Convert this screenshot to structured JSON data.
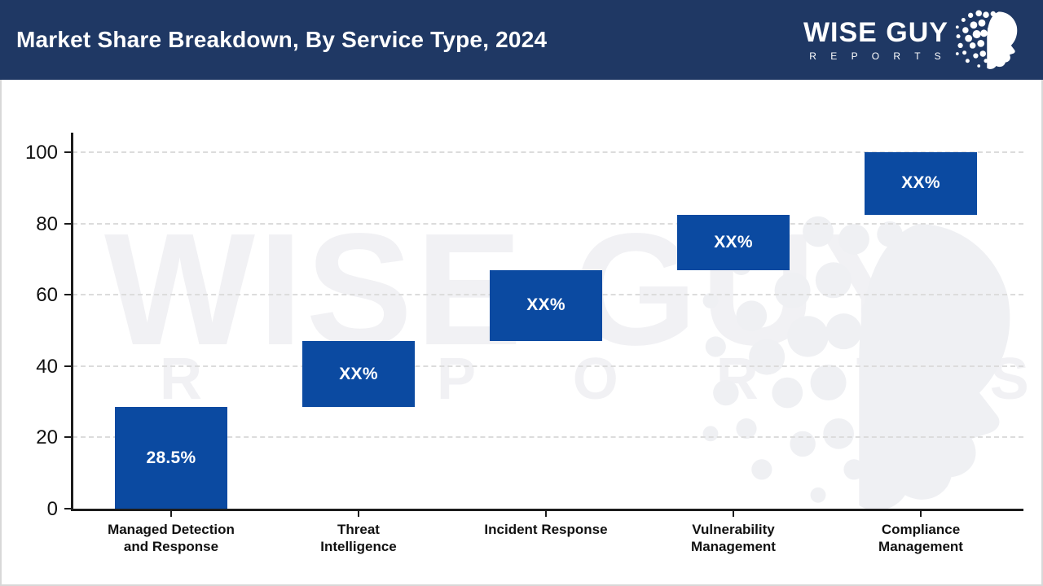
{
  "header": {
    "title": "Market Share Breakdown, By Service Type, 2024",
    "bg_color": "#1f3864",
    "logo": {
      "wordmark": "WISE GUY",
      "subtext": "R E P O R T S"
    }
  },
  "watermark": {
    "wordmark": "WISE GUY",
    "subtext": "R E P O R T S"
  },
  "chart_data": {
    "type": "bar",
    "subtype": "waterfall",
    "title": "Market Share Breakdown, By Service Type, 2024",
    "categories": [
      [
        "Managed Detection",
        "and Response"
      ],
      [
        "Threat",
        "Intelligence"
      ],
      [
        "Incident Response"
      ],
      [
        "Vulnerability",
        "Management"
      ],
      [
        "Compliance",
        "Management"
      ]
    ],
    "segments": [
      {
        "category": "Managed Detection and Response",
        "start": 0,
        "end": 28.5,
        "label": "28.5%"
      },
      {
        "category": "Threat Intelligence",
        "start": 28.5,
        "end": 47,
        "label": "XX%"
      },
      {
        "category": "Incident Response",
        "start": 47,
        "end": 67,
        "label": "XX%"
      },
      {
        "category": "Vulnerability Management",
        "start": 67,
        "end": 82.5,
        "label": "XX%"
      },
      {
        "category": "Compliance Management",
        "start": 82.5,
        "end": 100,
        "label": "XX%"
      }
    ],
    "y_ticks": [
      0,
      20,
      40,
      60,
      80,
      100
    ],
    "ylim": [
      0,
      100
    ],
    "xlabel": "",
    "ylabel": "",
    "grid": "horizontal-dashed",
    "legend": "none",
    "bar_color": "#0b4aa1",
    "bar_label_color": "#ffffff",
    "gridline_color": "#dcdcdc",
    "axis_color": "#1c1c1c"
  }
}
